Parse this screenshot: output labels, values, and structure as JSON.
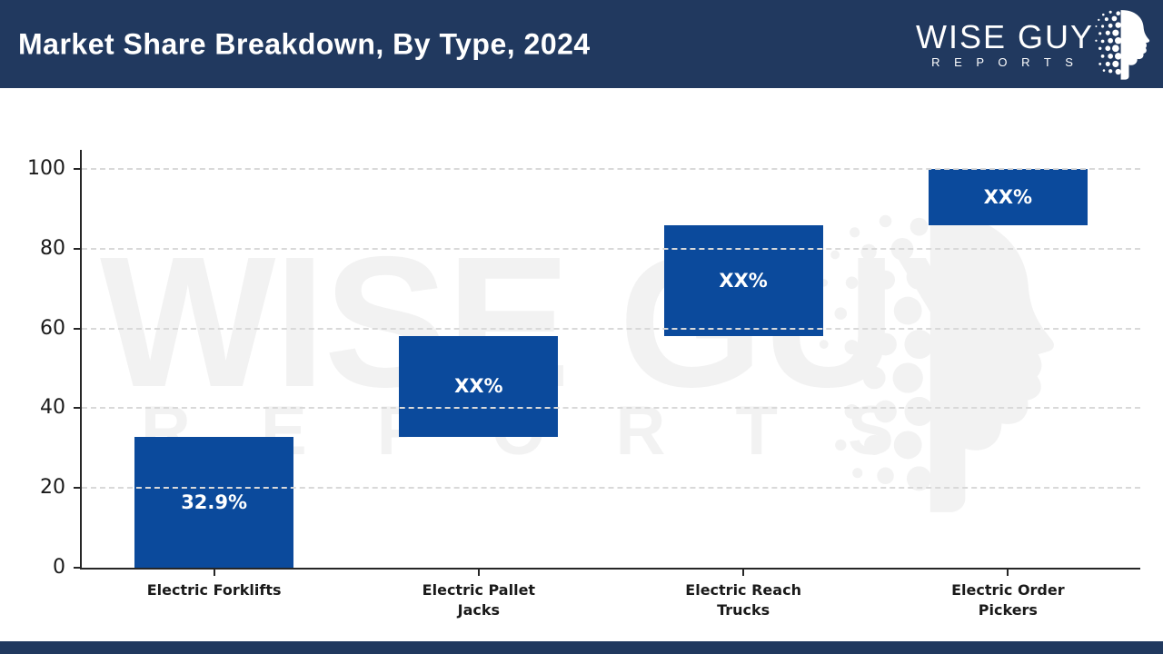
{
  "header": {
    "title": "Market Share Breakdown, By Type, 2024",
    "logo_line1": "WISE GUY",
    "logo_line2": "R E P O R T S",
    "bg_color": "#21395f",
    "text_color": "#ffffff"
  },
  "watermark": {
    "line1": "WISE GUY",
    "line2": "R E P O R T S",
    "color": "#f2f2f2"
  },
  "chart_data": {
    "type": "bar",
    "subtype": "floating-segment-waterfall",
    "title": "Market Share Breakdown, By Type, 2024",
    "xlabel": "",
    "ylabel": "",
    "categories": [
      [
        "Electric Forklifts"
      ],
      [
        "Electric Pallet",
        "Jacks"
      ],
      [
        "Electric Reach",
        "Trucks"
      ],
      [
        "Electric Order",
        "Pickers"
      ]
    ],
    "series": [
      {
        "name": "Market share (%)",
        "segments": [
          {
            "category": "Electric Forklifts",
            "from": 0,
            "to": 32.9,
            "label": "32.9%"
          },
          {
            "category": "Electric Pallet Jacks",
            "from": 32.9,
            "to": 58.2,
            "label": "XX%"
          },
          {
            "category": "Electric Reach Trucks",
            "from": 58.2,
            "to": 85.9,
            "label": "XX%"
          },
          {
            "category": "Electric Order Pickers",
            "from": 85.9,
            "to": 100,
            "label": "XX%"
          }
        ]
      }
    ],
    "yticks": [
      0,
      20,
      40,
      60,
      80,
      100
    ],
    "ylim": [
      0,
      104.8
    ],
    "grid": "horizontal-dashed",
    "legend": "none",
    "bar_color": "#0b4a9c",
    "bar_label_color": "#ffffff",
    "axis_color": "#262626",
    "grid_color": "#d9d9d9",
    "tick_label_color": "#1a1a1a"
  },
  "footer": {
    "bg_color": "#21395f"
  }
}
